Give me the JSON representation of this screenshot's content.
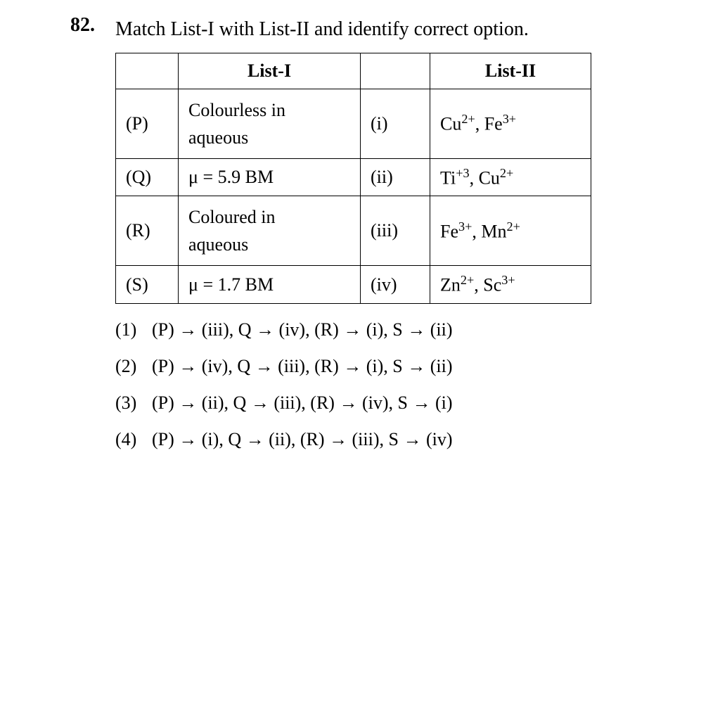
{
  "question": {
    "number": "82.",
    "text": "Match List-I with List-II and identify correct option."
  },
  "table": {
    "headers": {
      "blank1": "",
      "list1": "List-I",
      "blank2": "",
      "list2": "List-II"
    },
    "rows": [
      {
        "key1": "(P)",
        "desc1_line1": "Colourless in",
        "desc1_line2": "aqueous",
        "key2": "(i)",
        "ion_a_el": "Cu",
        "ion_a_ch": "2+",
        "ion_b_el": "Fe",
        "ion_b_ch": "3+"
      },
      {
        "key1": "(Q)",
        "desc1_single": "μ = 5.9 BM",
        "key2": "(ii)",
        "ion_a_el": "Ti",
        "ion_a_ch": "+3",
        "ion_b_el": "Cu",
        "ion_b_ch": "2+"
      },
      {
        "key1": "(R)",
        "desc1_line1": "Coloured in",
        "desc1_line2": "aqueous",
        "key2": "(iii)",
        "ion_a_el": "Fe",
        "ion_a_ch": "3+",
        "ion_b_el": "Mn",
        "ion_b_ch": "2+"
      },
      {
        "key1": "(S)",
        "desc1_single": "μ = 1.7 BM",
        "key2": "(iv)",
        "ion_a_el": "Zn",
        "ion_a_ch": "2+",
        "ion_b_el": "Sc",
        "ion_b_ch": "3+"
      }
    ]
  },
  "options": [
    {
      "num": "(1)",
      "text": "(P) → (iii), Q → (iv), (R) → (i), S → (ii)"
    },
    {
      "num": "(2)",
      "text": "(P) → (iv), Q → (iii), (R) → (i), S → (ii)"
    },
    {
      "num": "(3)",
      "text": "(P) → (ii), Q → (iii), (R) → (iv), S → (i)"
    },
    {
      "num": "(4)",
      "text": "(P) → (i), Q → (ii), (R) → (iii), S → (iv)"
    }
  ],
  "style": {
    "font_family": "Times New Roman",
    "text_color": "#000000",
    "background": "#ffffff",
    "border_color": "#000000",
    "qnum_fontsize": 28,
    "body_fontsize": 26
  }
}
